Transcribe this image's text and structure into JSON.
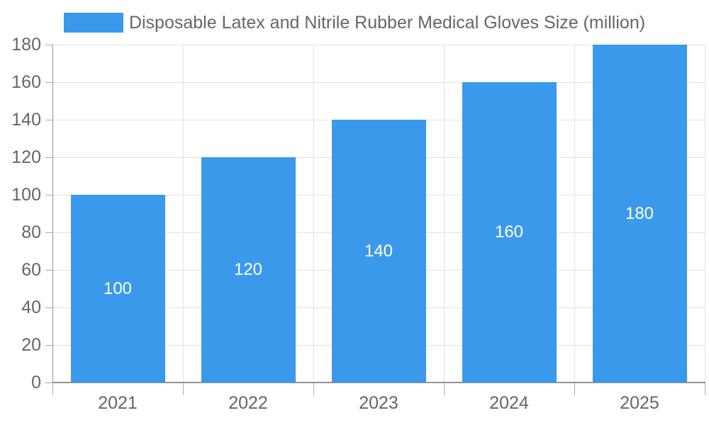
{
  "chart_data": {
    "type": "bar",
    "title": "Disposable Latex and Nitrile Rubber Medical Gloves Size (million)",
    "categories": [
      "2021",
      "2022",
      "2023",
      "2024",
      "2025"
    ],
    "values": [
      100,
      120,
      140,
      160,
      180
    ],
    "xlabel": "",
    "ylabel": "",
    "ylim": [
      0,
      180
    ],
    "ytick_step": 20,
    "yticks": [
      0,
      20,
      40,
      60,
      80,
      100,
      120,
      140,
      160,
      180
    ],
    "grid": true,
    "legend_position": "top",
    "value_labels": [
      "100",
      "120",
      "140",
      "160",
      "180"
    ],
    "colors": {
      "bar": "#3B99EC",
      "value_label": "#ffffff",
      "axis_text": "#666666",
      "grid_line": "#e3e3e3",
      "axis_line": "#929292",
      "tick": "#ababab",
      "background": "#ffffff"
    }
  }
}
